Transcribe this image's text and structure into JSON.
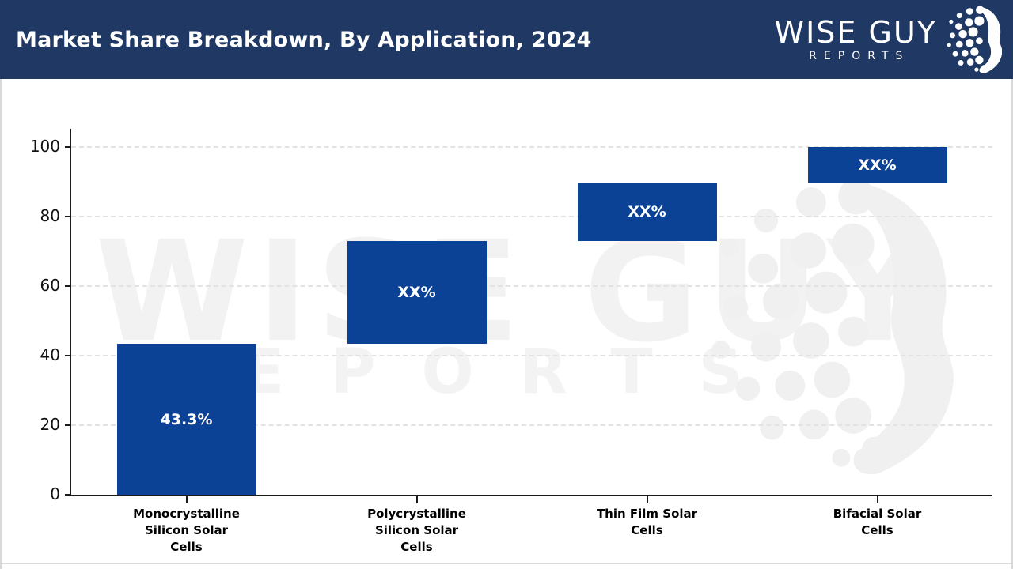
{
  "header": {
    "title": "Market Share Breakdown, By Application, 2024",
    "bg_color": "#1f3864",
    "logo_wordmark": "WISE GUY",
    "logo_subtext": "REPORTS"
  },
  "watermark": {
    "wordmark": "WISE GUY",
    "subtext": "REPORTS"
  },
  "chart_data": {
    "type": "bar",
    "subtype": "floating-waterfall-segments",
    "title": "Market Share Breakdown, By Application, 2024",
    "xlabel": "",
    "ylabel": "",
    "categories": [
      [
        "Monocrystalline",
        "Silicon Solar",
        "Cells"
      ],
      [
        "Polycrystalline",
        "Silicon Solar",
        "Cells"
      ],
      [
        "Thin Film Solar",
        "Cells"
      ],
      [
        "Bifacial Solar",
        "Cells"
      ]
    ],
    "segments": [
      {
        "start": 0,
        "end": 43.3,
        "value_label": "43.3%"
      },
      {
        "start": 43.3,
        "end": 73.0,
        "value_label": "XX%"
      },
      {
        "start": 73.0,
        "end": 89.5,
        "value_label": "XX%"
      },
      {
        "start": 89.5,
        "end": 100.0,
        "value_label": "XX%"
      }
    ],
    "yticks": [
      0,
      20,
      40,
      60,
      80,
      100
    ],
    "ylim": [
      0,
      105
    ],
    "grid": "horizontal-dashed",
    "legend": "none",
    "bar_color": "#0c4296",
    "bar_label_color": "#ffffff"
  }
}
